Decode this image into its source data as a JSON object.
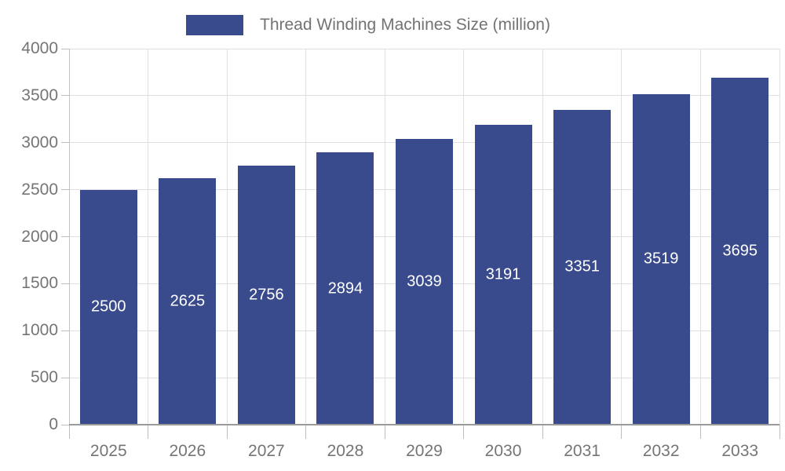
{
  "legend": {
    "label": "Thread Winding Machines Size (million)"
  },
  "colors": {
    "bar": "#3A4B8D",
    "bar_label": "#FFFFFF",
    "axis_line": "#9A9A9A",
    "axis_left_line": "#C4C4C4",
    "tick": "#BDBDBD",
    "grid": "#E0E0E0",
    "label_text": "#757575",
    "legend_text": "#737373"
  },
  "chart_data": {
    "type": "bar",
    "title": "Thread Winding Machines Size (million)",
    "categories": [
      "2025",
      "2026",
      "2027",
      "2028",
      "2029",
      "2030",
      "2031",
      "2032",
      "2033"
    ],
    "values": [
      2500,
      2625,
      2756,
      2894,
      3039,
      3191,
      3351,
      3519,
      3695
    ],
    "xlabel": "",
    "ylabel": "",
    "ylim": [
      0,
      4000
    ],
    "ytick_step": 500,
    "yticks": [
      0,
      500,
      1000,
      1500,
      2000,
      2500,
      3000,
      3500,
      4000
    ],
    "grid": true,
    "legend_position": "top-center",
    "value_labels": "inside-center"
  }
}
